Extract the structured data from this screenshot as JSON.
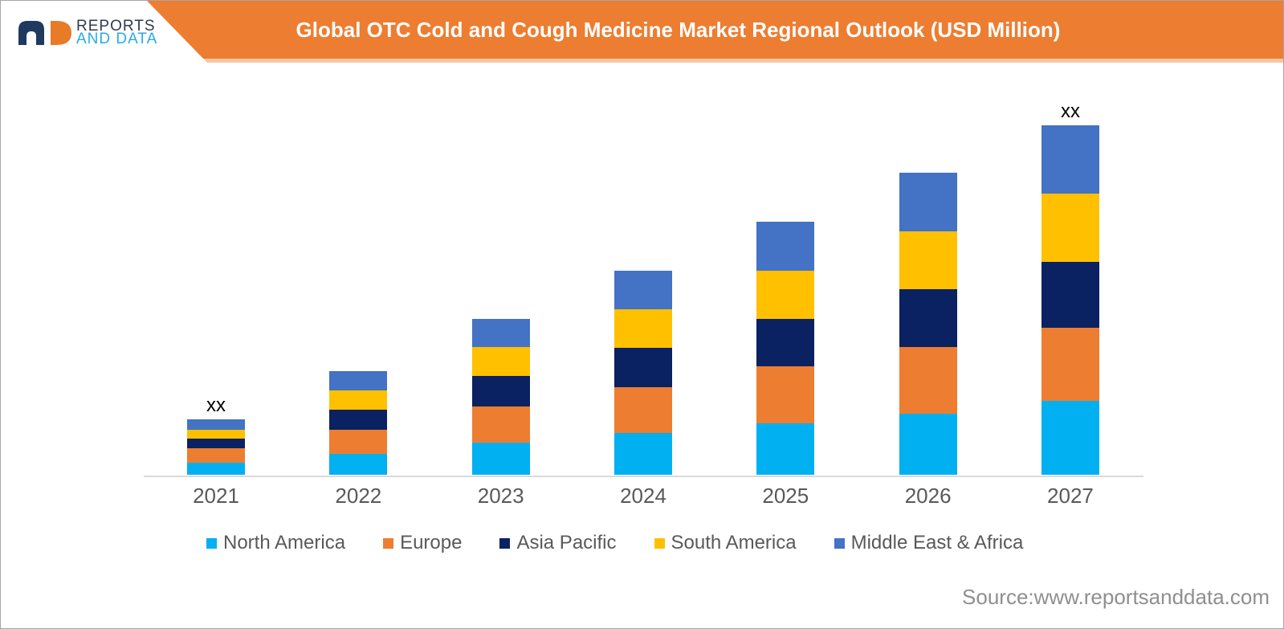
{
  "header": {
    "title": "Global OTC Cold and Cough Medicine Market Regional Outlook (USD Million)",
    "banner_color": "#ED7D31",
    "banner_edge_color": "#F0985A",
    "logo": {
      "letter_r": "R",
      "letter_d": "D",
      "line1": "REPORTS",
      "line2": "AND DATA",
      "r_color": "#1E3A5F",
      "d_color": "#E87B28",
      "line1_color": "#2E3B4E",
      "line2_color": "#29ABE2"
    }
  },
  "chart_data": {
    "type": "bar",
    "stacked": true,
    "title": "Global OTC Cold and Cough Medicine Market Regional Outlook (USD Million)",
    "categories": [
      "2021",
      "2022",
      "2023",
      "2024",
      "2025",
      "2026",
      "2027"
    ],
    "series": [
      {
        "name": "North America",
        "color": "#00B0F0",
        "values": [
          15,
          26,
          40,
          52,
          64,
          76,
          92
        ]
      },
      {
        "name": "Europe",
        "color": "#ED7D31",
        "values": [
          18,
          30,
          45,
          57,
          71,
          83,
          91
        ]
      },
      {
        "name": "Asia Pacific",
        "color": "#0A2162",
        "values": [
          12,
          25,
          38,
          49,
          59,
          72,
          82
        ]
      },
      {
        "name": "South America",
        "color": "#FFC000",
        "values": [
          11,
          24,
          36,
          48,
          60,
          72,
          85
        ]
      },
      {
        "name": "Middle East & Africa",
        "color": "#4472C4",
        "values": [
          13,
          24,
          35,
          48,
          61,
          73,
          85
        ]
      }
    ],
    "bar_labels": [
      {
        "category": "2021",
        "text": "xx"
      },
      {
        "category": "2027",
        "text": "xx"
      }
    ],
    "value_axis": {
      "visible": false,
      "unit": "USD Million",
      "values_hidden": true,
      "values_are_relative_estimates": true
    },
    "ylim": [
      0,
      480
    ],
    "grid": false,
    "legend_position": "bottom",
    "axis_color": "#D9D9D9",
    "label_color": "#595959"
  },
  "footer": {
    "source_label": "Source:www.reportsanddata.com"
  }
}
